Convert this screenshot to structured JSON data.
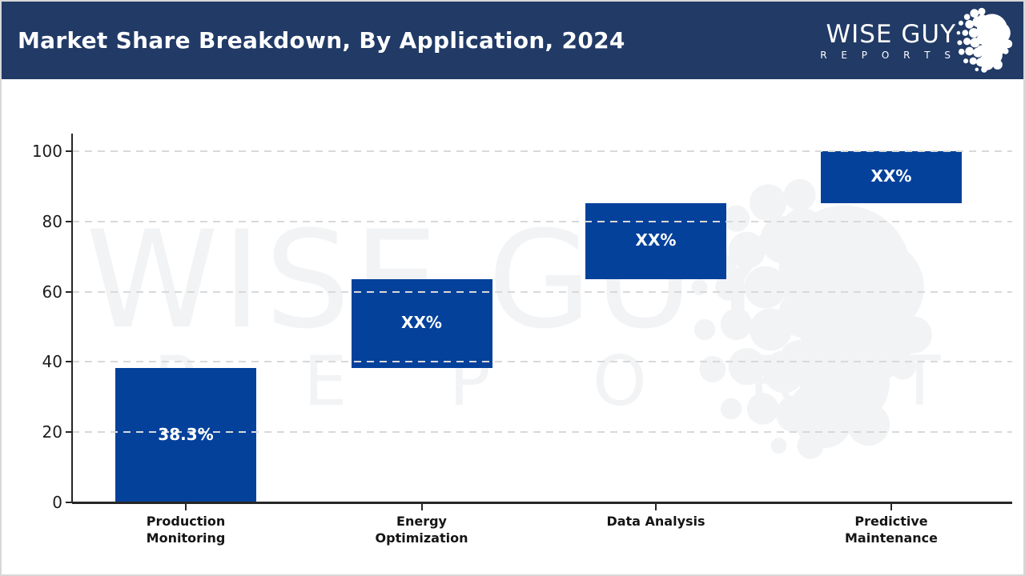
{
  "header": {
    "title": "Market Share Breakdown, By Application, 2024",
    "logo_line1": "WISE GUY",
    "logo_line2": "R E P O R T S"
  },
  "watermark": {
    "line1": "WISE GUY",
    "line2": "R E P O R T S"
  },
  "colors": {
    "header_bg": "#213a66",
    "bar": "#04419b",
    "bar_label": "#ffffff",
    "grid": "#d9d9d9",
    "axis": "#262626",
    "watermark": "#f2f3f5"
  },
  "chart_data": {
    "type": "bar",
    "subtype": "floating-waterfall",
    "title": "Market Share Breakdown, By Application, 2024",
    "categories": [
      "Production Monitoring",
      "Energy Optimization",
      "Data Analysis",
      "Predictive Maintenance"
    ],
    "category_lines": [
      [
        "Production",
        "Monitoring"
      ],
      [
        "Energy",
        "Optimization"
      ],
      [
        "Data Analysis"
      ],
      [
        "Predictive",
        "Maintenance"
      ]
    ],
    "segments": [
      {
        "category": "Production Monitoring",
        "start": 0,
        "end": 38.3,
        "label": "38.3%"
      },
      {
        "category": "Energy Optimization",
        "start": 38.3,
        "end": 63.6,
        "label": "XX%"
      },
      {
        "category": "Data Analysis",
        "start": 63.6,
        "end": 85.2,
        "label": "XX%"
      },
      {
        "category": "Predictive Maintenance",
        "start": 85.2,
        "end": 100,
        "label": "XX%"
      }
    ],
    "ylim": [
      0,
      100
    ],
    "yticks": [
      0,
      20,
      40,
      60,
      80,
      100
    ],
    "grid": "horizontal dashed",
    "legend": "none",
    "xlabel": "",
    "ylabel": ""
  }
}
